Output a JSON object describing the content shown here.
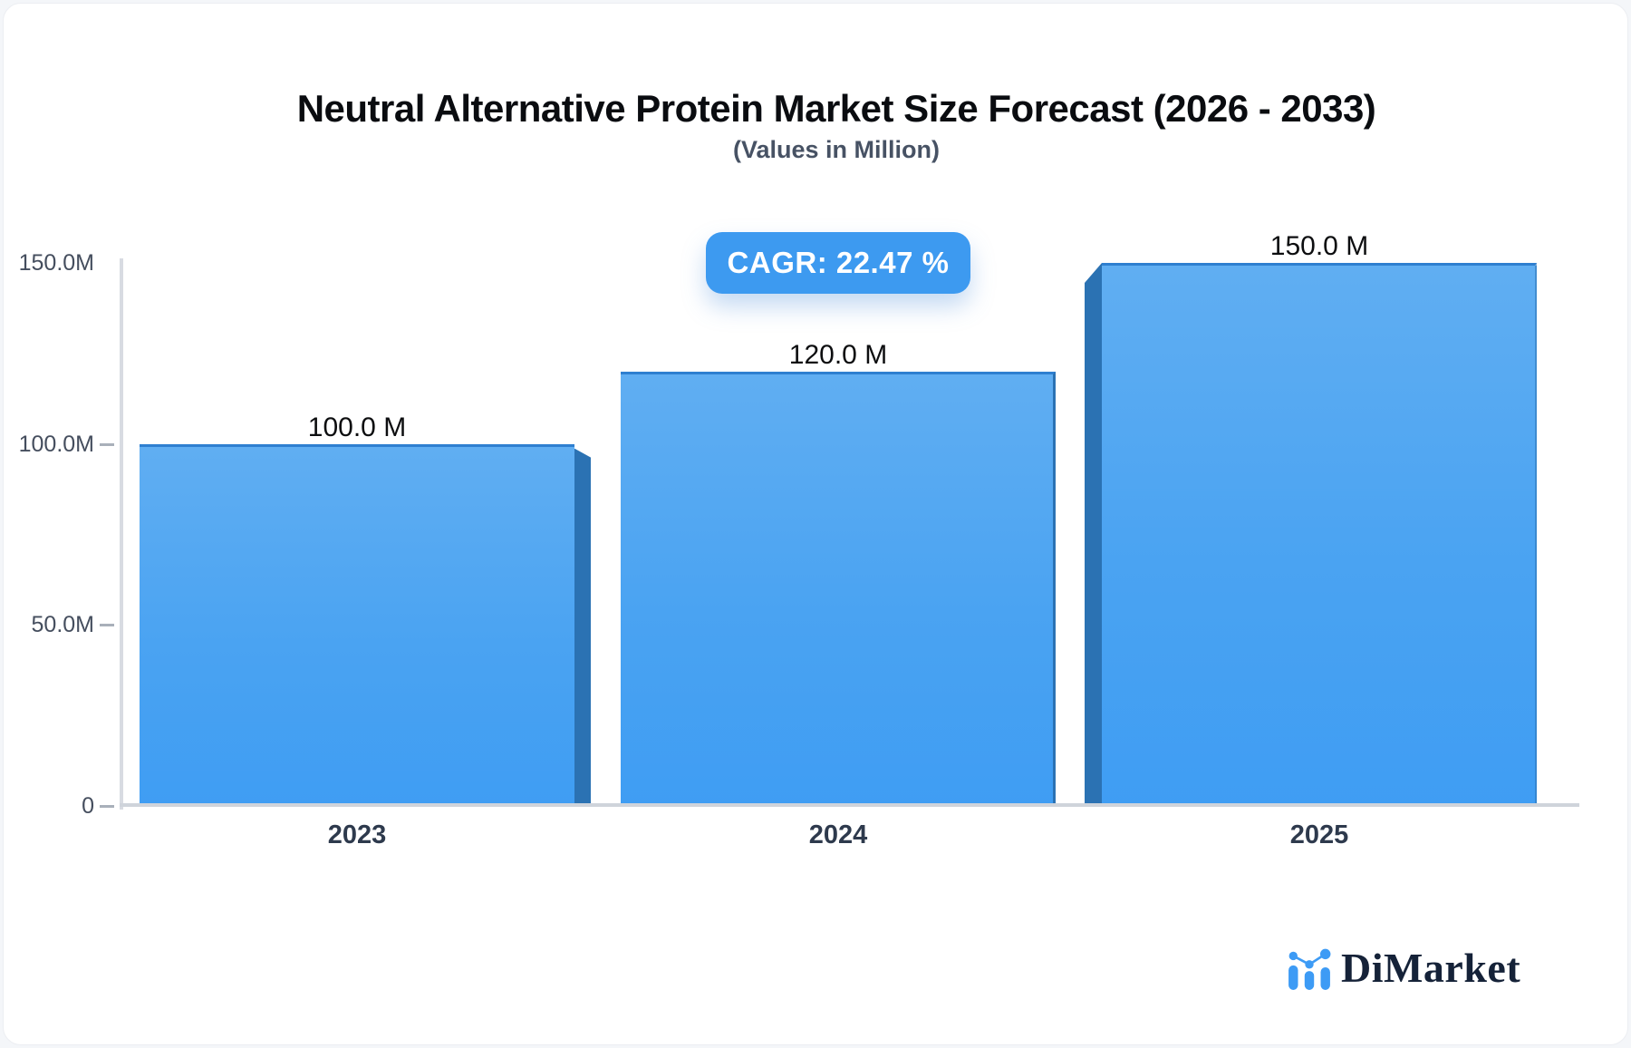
{
  "page": {
    "background_color": "#f4f6f9",
    "card_color": "#ffffff"
  },
  "badge": {
    "label": "CAGR: 22.47 %",
    "background_color": "#3d9af0",
    "text_color": "#ffffff"
  },
  "chart_data": {
    "type": "bar",
    "title": "Neutral Alternative Protein Market Size Forecast (2026 - 2033)",
    "subtitle": "(Values in Million)",
    "unit": "Million",
    "categories": [
      "2023",
      "2024",
      "2025"
    ],
    "values": [
      100,
      120,
      150
    ],
    "value_labels": [
      "100.0 M",
      "120.0 M",
      "150.0 M"
    ],
    "cagr_percent": 22.47,
    "ylim": [
      0,
      150
    ],
    "yticks": [
      {
        "label": "150.0M",
        "value": 150,
        "tick": false
      },
      {
        "label": "100.0M",
        "value": 100,
        "tick": true
      },
      {
        "label": "50.0M",
        "value": 50,
        "tick": true
      },
      {
        "label": "0",
        "value": 0,
        "tick": true
      }
    ],
    "grid": false,
    "legend": false,
    "bar_color_top": "#60aef2",
    "bar_color_bottom": "#3f9df3",
    "bar_side_color": "#2b72b3"
  },
  "logo": {
    "text": "DiMarket",
    "icon": "mini-bar-chart-logo-icon",
    "text_color": "#152238",
    "accent_color": "#3d9bf5"
  }
}
